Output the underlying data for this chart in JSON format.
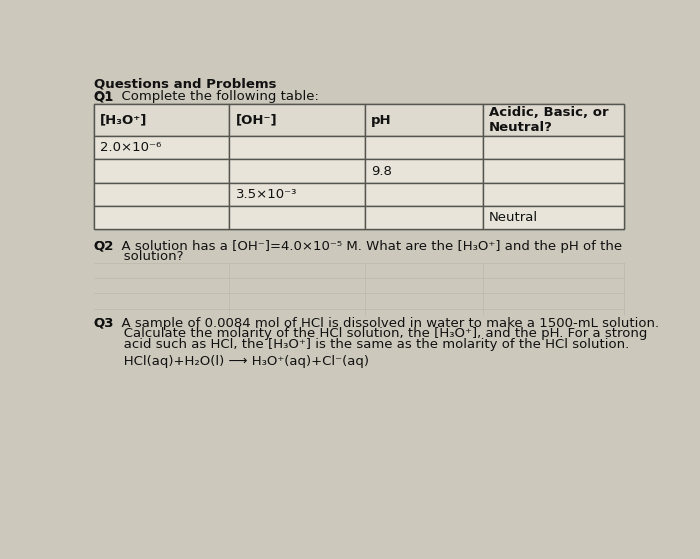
{
  "title": "Questions and Problems",
  "q1_label": "Q1",
  "q1_rest": "  Complete the following table:",
  "table_headers": [
    "[H₃O⁺]",
    "[OH⁻]",
    "pH",
    "Acidic, Basic, or\nNeutral?"
  ],
  "table_rows": [
    [
      "2.0×10⁻⁶",
      "",
      "",
      ""
    ],
    [
      "",
      "",
      "9.8",
      ""
    ],
    [
      "",
      "3.5×10⁻³",
      "",
      ""
    ],
    [
      "",
      "",
      "",
      "Neutral"
    ]
  ],
  "q2_label": "Q2",
  "q2_line1": "  A solution has a [OH⁻]=4.0×10⁻⁵ M. What are the [H₃O⁺] and the pH of the",
  "q2_line2": "       solution?",
  "q3_label": "Q3",
  "q3_line1": "  A sample of 0.0084 mol of HCl is dissolved in water to make a 1500-mL solution.",
  "q3_line2": "       Calculate the molarity of the HCl solution, the [H₃O⁺], and the pH. For a strong",
  "q3_line3": "       acid such as HCl, the [H₃O⁺] is the same as the molarity of the HCl solution.",
  "equation": "       HCl(aq)+H₂O(l) ⟶ H₃O⁺(aq)+Cl⁻(aq)",
  "bg_color": "#ccc8bc",
  "paper_color": "#e8e4da",
  "header_color": "#dedad0",
  "text_color": "#111111",
  "border_color": "#555550",
  "figsize": [
    7.0,
    5.59
  ],
  "dpi": 100
}
